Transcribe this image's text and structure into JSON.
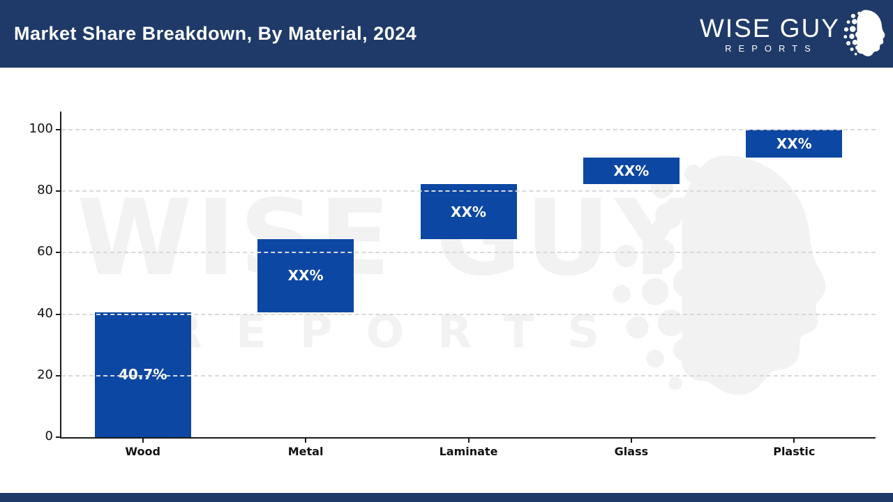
{
  "header": {
    "title": "Market Share Breakdown, By Material, 2024",
    "logo_line1": "WISE GUY",
    "logo_line2": "REPORTS"
  },
  "watermark": {
    "line1": "WISE GUY",
    "line2": "REPORTS"
  },
  "chart_data": {
    "type": "bar",
    "subtype": "waterfall",
    "title": "Market Share Breakdown, By Material, 2024",
    "categories": [
      "Wood",
      "Metal",
      "Laminate",
      "Glass",
      "Plastic"
    ],
    "bars": [
      {
        "category": "Wood",
        "start": 0,
        "end": 40.7,
        "label": "40.7%"
      },
      {
        "category": "Metal",
        "start": 40.7,
        "end": 64.4,
        "label": "XX%"
      },
      {
        "category": "Laminate",
        "start": 64.4,
        "end": 82.3,
        "label": "XX%"
      },
      {
        "category": "Glass",
        "start": 82.3,
        "end": 91.0,
        "label": "XX%"
      },
      {
        "category": "Plastic",
        "start": 91.0,
        "end": 100.0,
        "label": "XX%"
      }
    ],
    "ylim": [
      0,
      100
    ],
    "yticks": [
      0,
      20,
      40,
      60,
      80,
      100
    ],
    "xlabel": "",
    "ylabel": "",
    "grid": "horizontal-dashed",
    "legend": "none",
    "bar_color": "#0c47a3",
    "bar_label_color": "#ffffff"
  },
  "colors": {
    "header_bg": "#1f3a68",
    "footer_bg": "#1f3a68",
    "bar": "#0c47a3",
    "grid": "#d9d9d9",
    "axis": "#1a1a1a",
    "watermark": "#f2f2f2",
    "title_text": "#ffffff"
  }
}
